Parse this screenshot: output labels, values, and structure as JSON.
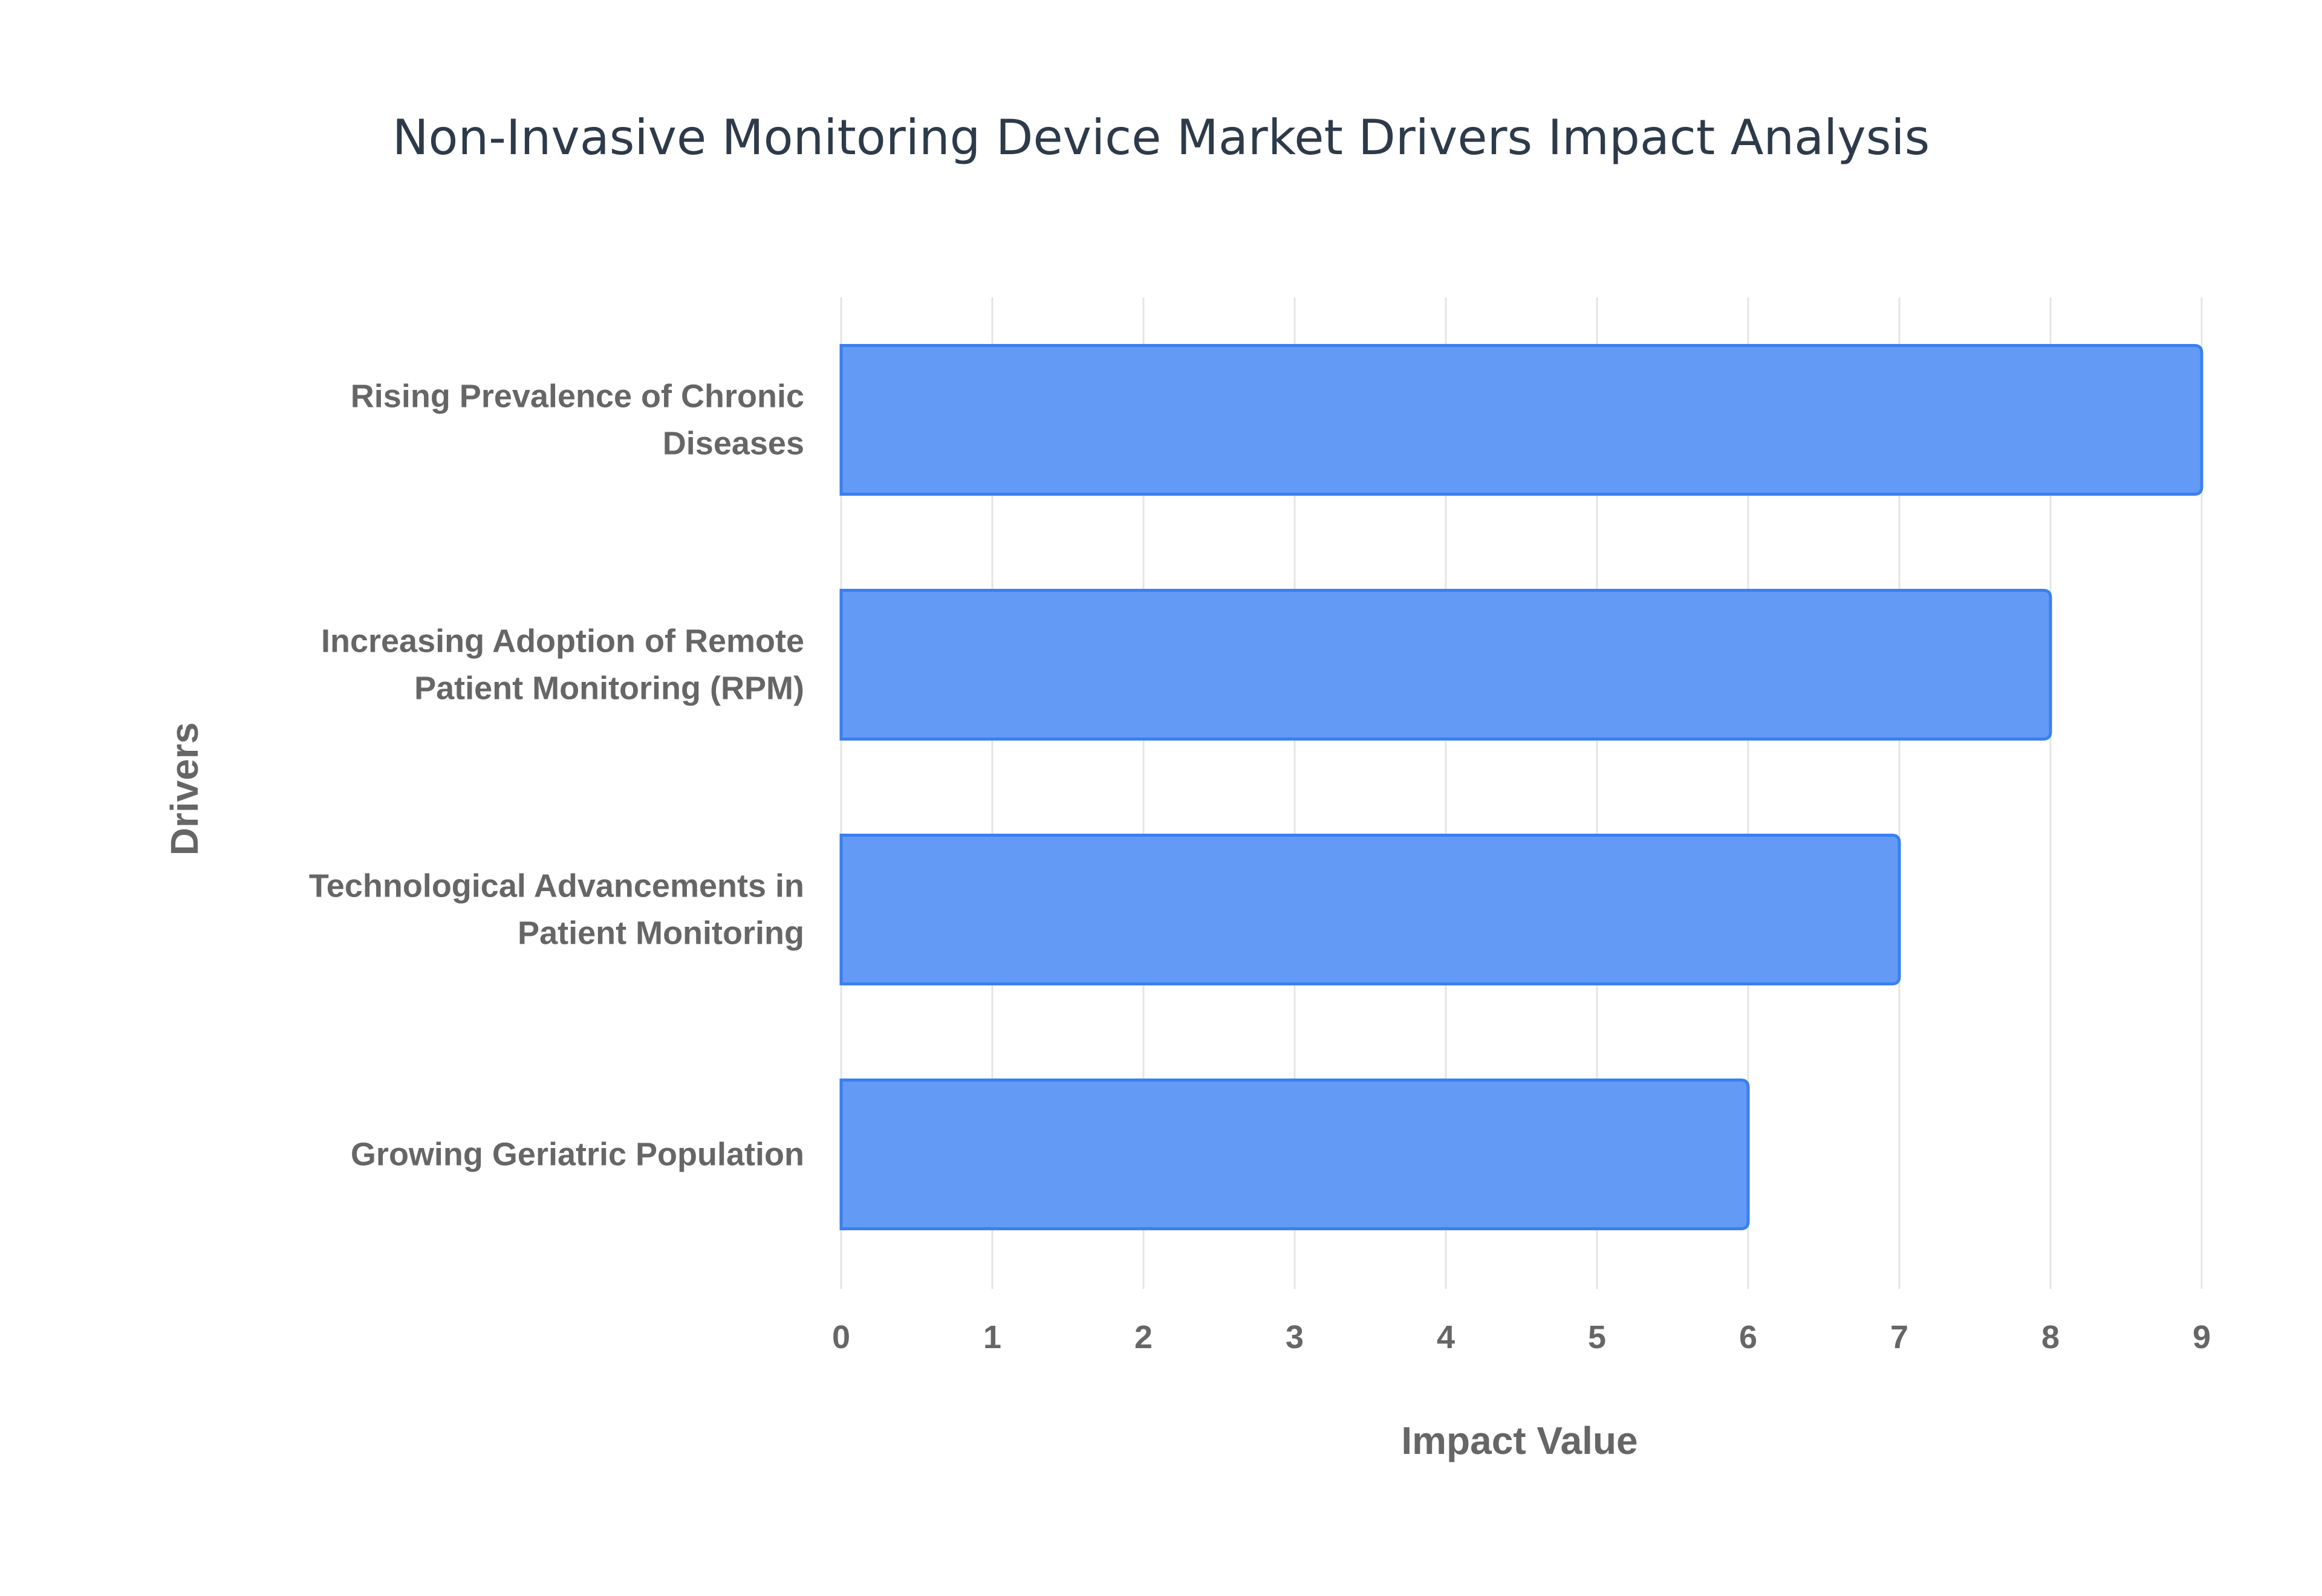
{
  "chart_data": {
    "type": "bar",
    "orientation": "horizontal",
    "title": "Non-Invasive Monitoring Device Market Drivers Impact Analysis",
    "xlabel": "Impact Value",
    "ylabel": "Drivers",
    "categories": [
      [
        "Rising Prevalence of Chronic",
        "Diseases"
      ],
      [
        "Increasing Adoption of Remote",
        "Patient Monitoring (RPM)"
      ],
      [
        "Technological Advancements in",
        "Patient Monitoring"
      ],
      [
        "Growing Geriatric Population"
      ]
    ],
    "values": [
      9,
      8,
      7,
      6
    ],
    "xlim": [
      0,
      9
    ],
    "xticks": [
      "0",
      "1",
      "2",
      "3",
      "4",
      "5",
      "6",
      "7",
      "8",
      "9"
    ],
    "grid": true,
    "colors": {
      "fill": "#639af6",
      "border": "#3b7ff0",
      "grid": "#e5e5e5"
    }
  }
}
